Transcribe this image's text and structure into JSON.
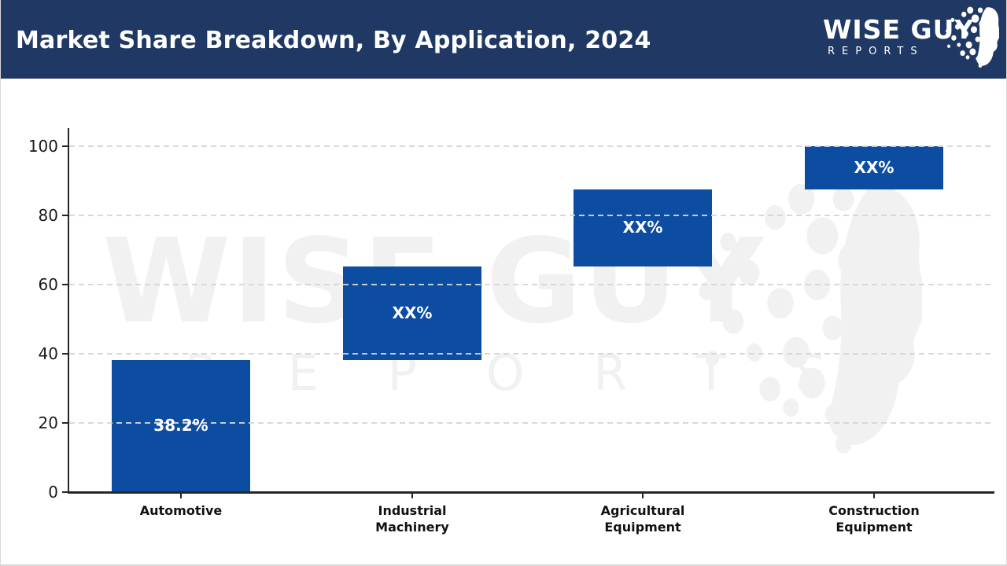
{
  "header": {
    "title": "Market Share Breakdown, By Application, 2024",
    "bg_color": "#1f3864",
    "logo": {
      "word": "WISE GUY",
      "sub": "REPORTS"
    }
  },
  "watermark": {
    "line1": "WISE GUY",
    "line2": "R E P O R T S"
  },
  "chart_data": {
    "type": "bar",
    "subtype": "waterfall",
    "title": "Market Share Breakdown, By Application, 2024",
    "categories": [
      "Automotive",
      "Industrial Machinery",
      "Agricultural Equipment",
      "Construction Equipment"
    ],
    "category_label_lines": [
      [
        "Automotive"
      ],
      [
        "Industrial",
        "Machinery"
      ],
      [
        "Agricultural",
        "Equipment"
      ],
      [
        "Construction",
        "Equipment"
      ]
    ],
    "bars": [
      {
        "category": "Automotive",
        "start": 0,
        "end": 38.2,
        "label": "38.2%"
      },
      {
        "category": "Industrial Machinery",
        "start": 38.2,
        "end": 65.2,
        "label": "XX%"
      },
      {
        "category": "Agricultural Equipment",
        "start": 65.2,
        "end": 87.5,
        "label": "XX%"
      },
      {
        "category": "Construction Equipment",
        "start": 87.5,
        "end": 100,
        "label": "XX%"
      }
    ],
    "ylim": [
      0,
      100
    ],
    "yticks": [
      0,
      20,
      40,
      60,
      80,
      100
    ],
    "xlabel": "",
    "ylabel": "",
    "grid": "horizontal-dashed",
    "legend": "none",
    "bar_color": "#0c4da2",
    "value_label_color": "#ffffff",
    "gridline_color": "#d9d9d9",
    "axis_color": "#262626"
  }
}
